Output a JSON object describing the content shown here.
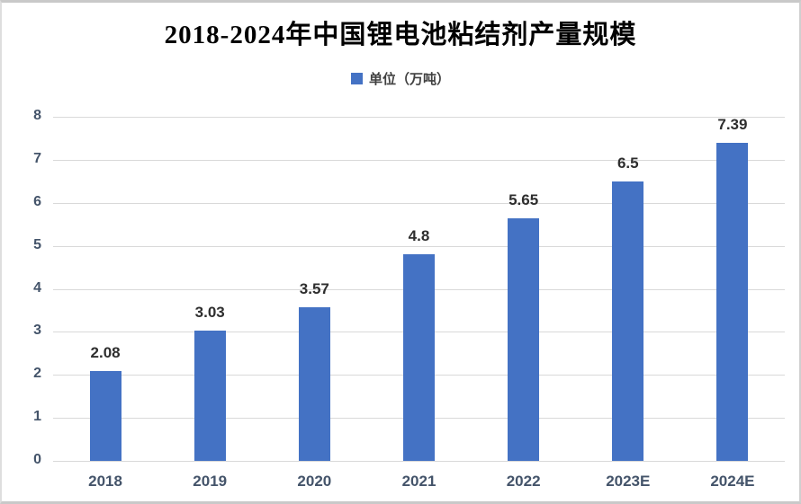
{
  "chart_data": {
    "type": "bar",
    "title": "2018-2024年中国锂电池粘结剂产量规模",
    "legend": "单位（万吨）",
    "legend_position": "top",
    "categories": [
      "2018",
      "2019",
      "2020",
      "2021",
      "2022",
      "2023E",
      "2024E"
    ],
    "values": [
      2.08,
      3.03,
      3.57,
      4.8,
      5.65,
      6.5,
      7.39
    ],
    "data_labels": [
      "2.08",
      "3.03",
      "3.57",
      "4.8",
      "5.65",
      "6.5",
      "7.39"
    ],
    "xlabel": "",
    "ylabel": "",
    "ylim": [
      0,
      8
    ],
    "yticks": [
      0,
      1,
      2,
      3,
      4,
      5,
      6,
      7,
      8
    ],
    "grid": true,
    "colors": {
      "bar": "#4472c4",
      "gridline": "#d9d9d9",
      "axis_label": "#44546a",
      "data_label": "#2e2e2e",
      "legend_marker": "#4472c4",
      "title": "#000000"
    }
  }
}
